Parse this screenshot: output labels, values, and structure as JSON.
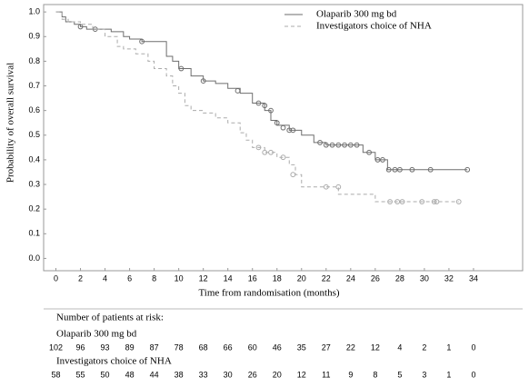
{
  "chart_data": {
    "type": "kaplan-meier",
    "step": "post",
    "xlabel": "Time from randomisation (months)",
    "ylabel": "Probability of overall survival",
    "xlim": [
      -1,
      38
    ],
    "ylim": [
      -0.05,
      1.03
    ],
    "xticks": [
      0,
      2,
      4,
      6,
      8,
      10,
      12,
      14,
      16,
      18,
      20,
      22,
      24,
      26,
      28,
      30,
      32,
      34
    ],
    "yticks": [
      {
        "value": 1,
        "label": "1.0"
      },
      0.9,
      0.8,
      0.7,
      0.6,
      0.5,
      0.4,
      0.3,
      0.2,
      0.1,
      {
        "value": 0,
        "label": "0.0"
      }
    ],
    "legend": "top-right",
    "series": [
      {
        "name": "Olaparib 300 mg bd",
        "color": "#6e6e6e",
        "dash": "none",
        "x": [
          0,
          0.5,
          0.8,
          1.5,
          2,
          2.5,
          3.5,
          4.5,
          5.5,
          6,
          7,
          8,
          9,
          9.5,
          10,
          11,
          12,
          13,
          14,
          15,
          16,
          17,
          17.5,
          18,
          19,
          20,
          21,
          22,
          25,
          26,
          27,
          33.5
        ],
        "values": [
          1.0,
          0.98,
          0.96,
          0.95,
          0.94,
          0.93,
          0.93,
          0.92,
          0.9,
          0.89,
          0.88,
          0.88,
          0.82,
          0.8,
          0.77,
          0.74,
          0.72,
          0.71,
          0.69,
          0.67,
          0.63,
          0.6,
          0.56,
          0.54,
          0.52,
          0.5,
          0.47,
          0.46,
          0.43,
          0.4,
          0.36,
          0.36
        ],
        "censor_x": [
          2,
          3.2,
          7,
          10.2,
          12,
          14.8,
          16.5,
          17,
          17.5,
          18,
          18.5,
          19,
          19.3,
          21.5,
          22,
          22.5,
          23,
          23.5,
          24,
          24.5,
          25.5,
          26.2,
          26.6,
          27.1,
          27.6,
          28,
          29,
          30.5,
          33.5
        ],
        "censor_values": [
          0.94,
          0.93,
          0.88,
          0.77,
          0.72,
          0.68,
          0.63,
          0.62,
          0.6,
          0.55,
          0.53,
          0.52,
          0.52,
          0.47,
          0.46,
          0.46,
          0.46,
          0.46,
          0.46,
          0.46,
          0.43,
          0.4,
          0.4,
          0.36,
          0.36,
          0.36,
          0.36,
          0.36,
          0.36
        ]
      },
      {
        "name": "Investigators choice of NHA",
        "color": "#ababab",
        "dash": "4 3",
        "x": [
          0,
          0.5,
          1,
          2,
          3,
          4,
          5,
          5.5,
          6.5,
          7.5,
          8,
          9,
          9.5,
          10,
          10.5,
          11,
          12,
          13,
          14,
          15,
          15.5,
          16,
          17,
          18,
          19,
          19.5,
          20,
          23,
          26,
          32.8
        ],
        "values": [
          1.0,
          0.97,
          0.96,
          0.95,
          0.93,
          0.9,
          0.86,
          0.85,
          0.83,
          0.8,
          0.77,
          0.74,
          0.7,
          0.67,
          0.62,
          0.6,
          0.59,
          0.57,
          0.55,
          0.51,
          0.48,
          0.45,
          0.43,
          0.41,
          0.38,
          0.34,
          0.29,
          0.26,
          0.23,
          0.23
        ],
        "censor_x": [
          16.5,
          17,
          17.5,
          18.5,
          19.3,
          22,
          23,
          27.2,
          27.8,
          28.2,
          29.8,
          30.8,
          31,
          32.8
        ],
        "censor_values": [
          0.45,
          0.43,
          0.43,
          0.41,
          0.34,
          0.29,
          0.29,
          0.23,
          0.23,
          0.23,
          0.23,
          0.23,
          0.23,
          0.23
        ]
      }
    ],
    "risk_table": {
      "title": "Number of patients at risk:",
      "rows": [
        {
          "values": [
            102,
            96,
            93,
            89,
            87,
            78,
            68,
            66,
            60,
            46,
            35,
            27,
            22,
            12,
            4,
            2,
            1,
            0
          ]
        },
        {
          "values": [
            58,
            55,
            50,
            48,
            44,
            38,
            33,
            30,
            26,
            20,
            12,
            11,
            9,
            8,
            5,
            3,
            1,
            0
          ]
        }
      ]
    }
  }
}
